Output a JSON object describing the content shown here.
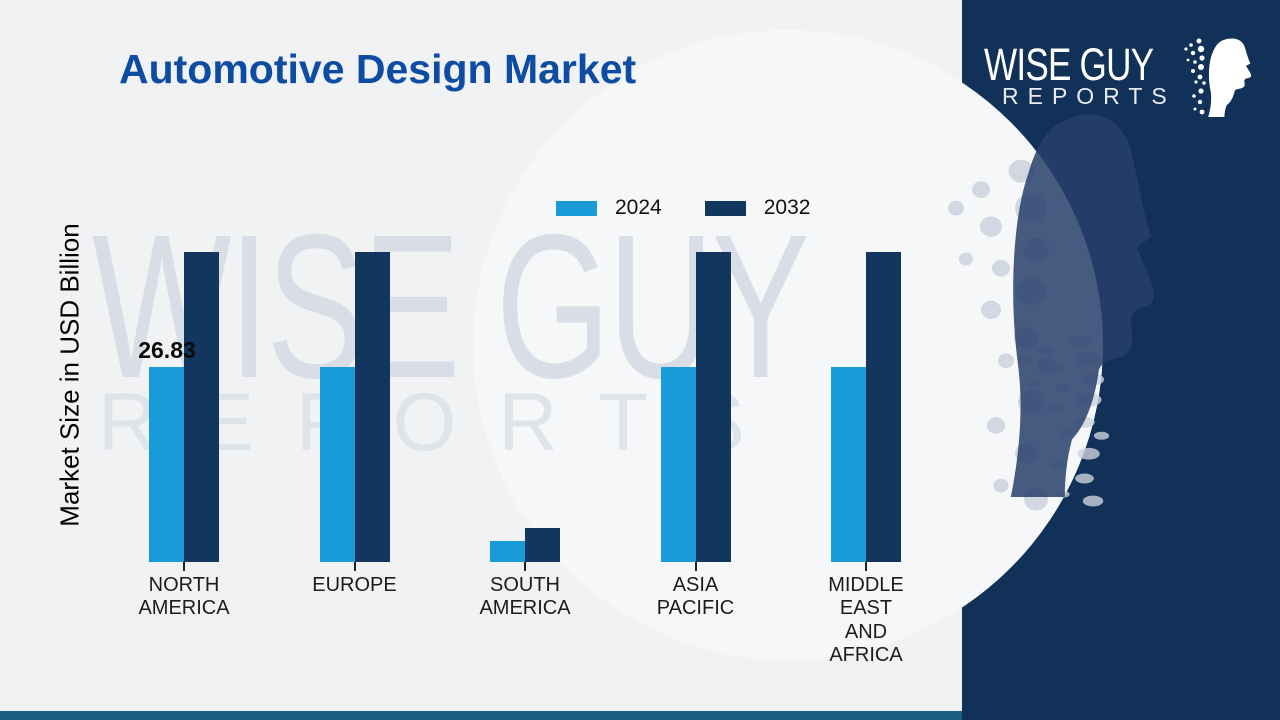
{
  "page": {
    "background": "#f1f2f4",
    "footer_bar_color": "#1b5f80",
    "panel_color": "#113158",
    "panel_circle_color": "#f6f7f9",
    "watermark_color": "#d9dde5",
    "face_silhouette_color": "rgba(40,64,107,0.85)"
  },
  "header": {
    "title": "Automotive Design Market",
    "title_color": "#0d4ca3"
  },
  "watermark": {
    "line1": "WISE GUY",
    "line2": "REPORTS"
  },
  "logo": {
    "line1": "WISE GUY",
    "line2": "REPORTS"
  },
  "chart_data": {
    "type": "bar",
    "title": "Automotive Design Market",
    "xlabel": "",
    "ylabel": "Market Size in USD Billion",
    "categories": [
      "NORTH AMERICA",
      "EUROPE",
      "SOUTH AMERICA",
      "ASIA PACIFIC",
      "MIDDLE EAST AND AFRICA"
    ],
    "categories_display": [
      [
        "NORTH",
        "AMERICA"
      ],
      [
        "EUROPE"
      ],
      [
        "SOUTH",
        "AMERICA"
      ],
      [
        "ASIA",
        "PACIFIC"
      ],
      [
        "MIDDLE",
        "EAST",
        "AND",
        "AFRICA"
      ]
    ],
    "series": [
      {
        "name": "2024",
        "color": "#189bd7",
        "values": [
          26.83,
          26.83,
          2.9,
          26.83,
          26.83
        ]
      },
      {
        "name": "2032",
        "color": "#13365f",
        "values": [
          42.65,
          42.65,
          4.7,
          42.65,
          42.65
        ]
      }
    ],
    "annotations": [
      {
        "category_index": 0,
        "series": "2024",
        "text": "26.83"
      }
    ],
    "legend_position": "top-right",
    "grid": false,
    "ylim": [
      0,
      45
    ]
  }
}
